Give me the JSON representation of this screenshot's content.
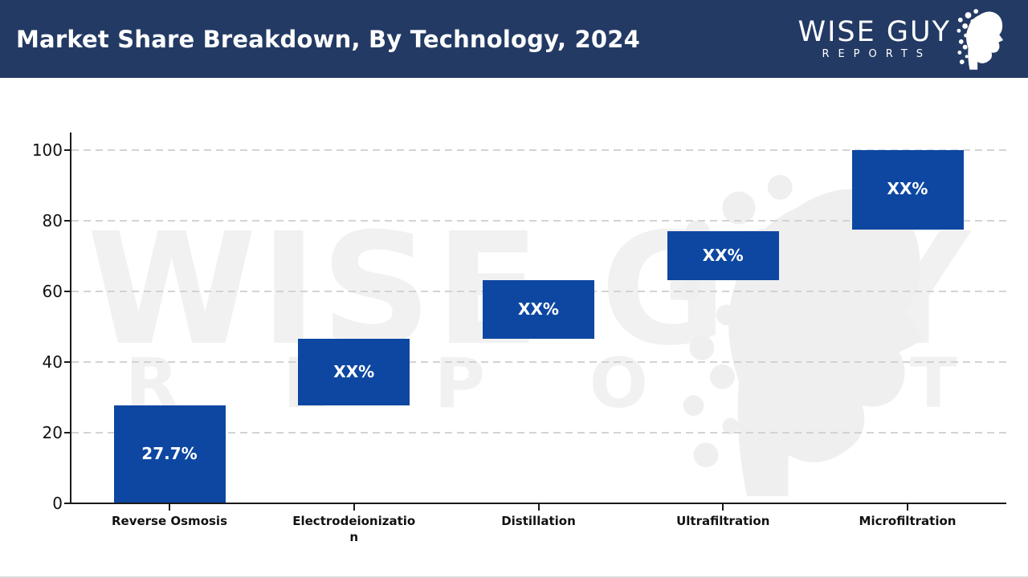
{
  "header": {
    "title": "Market Share Breakdown, By Technology, 2024",
    "bg_color": "#233a64",
    "logo": {
      "line1": "WISE GUY",
      "line2": "REPORTS"
    }
  },
  "watermark": {
    "line1": "WISE GUY",
    "line2": "R E P O R T S"
  },
  "chart_data": {
    "type": "bar",
    "subtype": "waterfall",
    "title": "Market Share Breakdown, By Technology, 2024",
    "categories": [
      "Reverse Osmosis",
      "Electrodeionization",
      "Distillation",
      "Ultrafiltration",
      "Microfiltration"
    ],
    "display_labels": [
      "Reverse Osmosis",
      "Electrodeionizatio\nn",
      "Distillation",
      "Ultrafiltration",
      "Microfiltration"
    ],
    "segments": [
      {
        "category": "Reverse Osmosis",
        "start": 0,
        "end": 27.7,
        "label": "27.7%"
      },
      {
        "category": "Electrodeionization",
        "start": 27.7,
        "end": 46.5,
        "label": "XX%"
      },
      {
        "category": "Distillation",
        "start": 46.5,
        "end": 63.0,
        "label": "XX%"
      },
      {
        "category": "Ultrafiltration",
        "start": 63.0,
        "end": 77.0,
        "label": "XX%"
      },
      {
        "category": "Microfiltration",
        "start": 77.5,
        "end": 100.0,
        "label": "XX%"
      }
    ],
    "xlabel": "",
    "ylabel": "",
    "ylim": [
      0,
      100
    ],
    "yticks": [
      0,
      20,
      40,
      60,
      80,
      100
    ],
    "grid": "horizontal-dashed",
    "legend": "none",
    "bar_color": "#0d47a1",
    "bar_label_color": "#ffffff",
    "axis_color": "#1a1a1a",
    "gridline_color": "#d3d3d3"
  }
}
